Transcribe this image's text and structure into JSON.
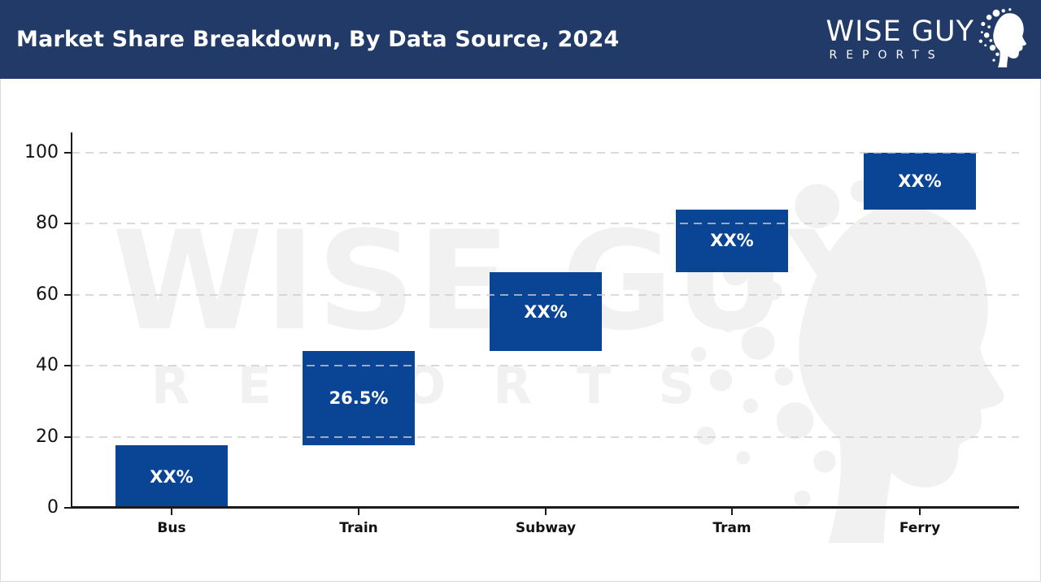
{
  "header": {
    "title": "Market Share Breakdown, By Data Source, 2024",
    "logo": {
      "line1": "WISE GUY",
      "line2": "REPORTS"
    }
  },
  "watermark": {
    "line1": "WISE GUY",
    "line2": "REPORTS"
  },
  "colors": {
    "header_bg": "#213a68",
    "bar": "#0a4494",
    "bar_label_text": "#ffffff",
    "axis": "#1a1a1a",
    "gridline": "#d9d9d9",
    "watermark": "#f1f1f2"
  },
  "chart_data": {
    "type": "bar",
    "subtype": "waterfall-floating-bars",
    "title": "Market Share Breakdown, By Data Source, 2024",
    "categories": [
      "Bus",
      "Train",
      "Subway",
      "Tram",
      "Ferry"
    ],
    "series": [
      {
        "name": "Market Share",
        "starts": [
          0,
          17.6,
          44.1,
          66.3,
          84.0
        ],
        "values": [
          17.6,
          26.5,
          22.2,
          17.7,
          16.0
        ],
        "ends": [
          17.6,
          44.1,
          66.3,
          84.0,
          100.0
        ],
        "bar_labels": [
          "XX%",
          "26.5%",
          "XX%",
          "XX%",
          "XX%"
        ]
      }
    ],
    "xlabel": "",
    "ylabel": "",
    "ylim": [
      0,
      105
    ],
    "yticks": [
      0,
      20,
      40,
      60,
      80,
      100
    ],
    "grid": "horizontal-dashed",
    "legend_position": "none"
  }
}
